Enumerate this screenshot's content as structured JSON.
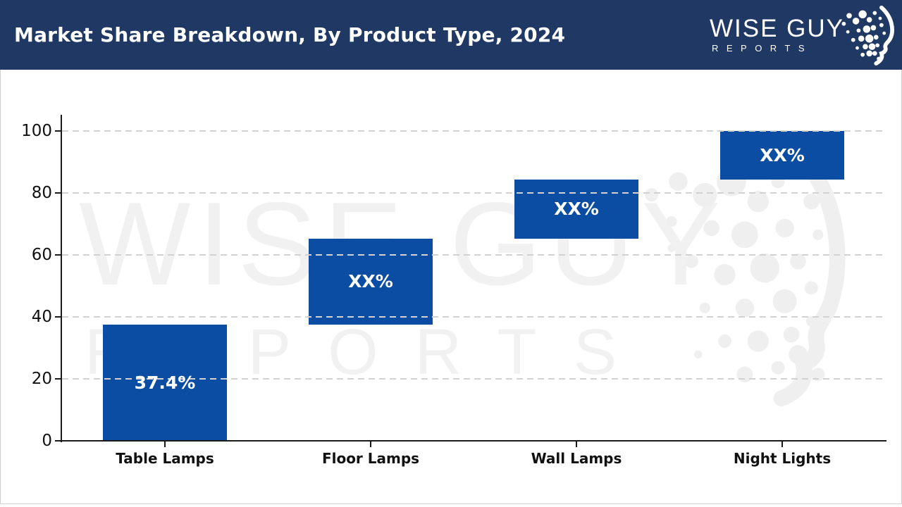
{
  "header": {
    "title": "Market Share Breakdown, By Product Type, 2024",
    "bg_color": "#1f3864",
    "logo": {
      "line1": "WISE GUY",
      "line2": "REPORTS"
    }
  },
  "watermark": {
    "line1": "WISE GUY",
    "line2": "REPORTS",
    "color": "#f1f1f1"
  },
  "chart_data": {
    "type": "bar",
    "subtype": "waterfall",
    "title": "Market Share Breakdown, By Product Type, 2024",
    "categories": [
      "Table Lamps",
      "Floor Lamps",
      "Wall Lamps",
      "Night Lights"
    ],
    "segments": [
      {
        "category": "Table Lamps",
        "start": 0,
        "end": 37.4,
        "label": "37.4%"
      },
      {
        "category": "Floor Lamps",
        "start": 37.4,
        "end": 65.2,
        "label": "XX%"
      },
      {
        "category": "Wall Lamps",
        "start": 65.2,
        "end": 84.3,
        "label": "XX%"
      },
      {
        "category": "Night Lights",
        "start": 84.3,
        "end": 100,
        "label": "XX%"
      }
    ],
    "ylim": [
      0,
      100
    ],
    "yticks": [
      0,
      20,
      40,
      60,
      80,
      100
    ],
    "xlabel": "",
    "ylabel": "",
    "grid": "horizontal dashed, drawn above bars",
    "legend": "none",
    "bar_color": "#0b4da2",
    "bar_label_color": "#ffffff",
    "grid_color": "#d2d2d2",
    "axis_color": "#1a1a1a"
  }
}
